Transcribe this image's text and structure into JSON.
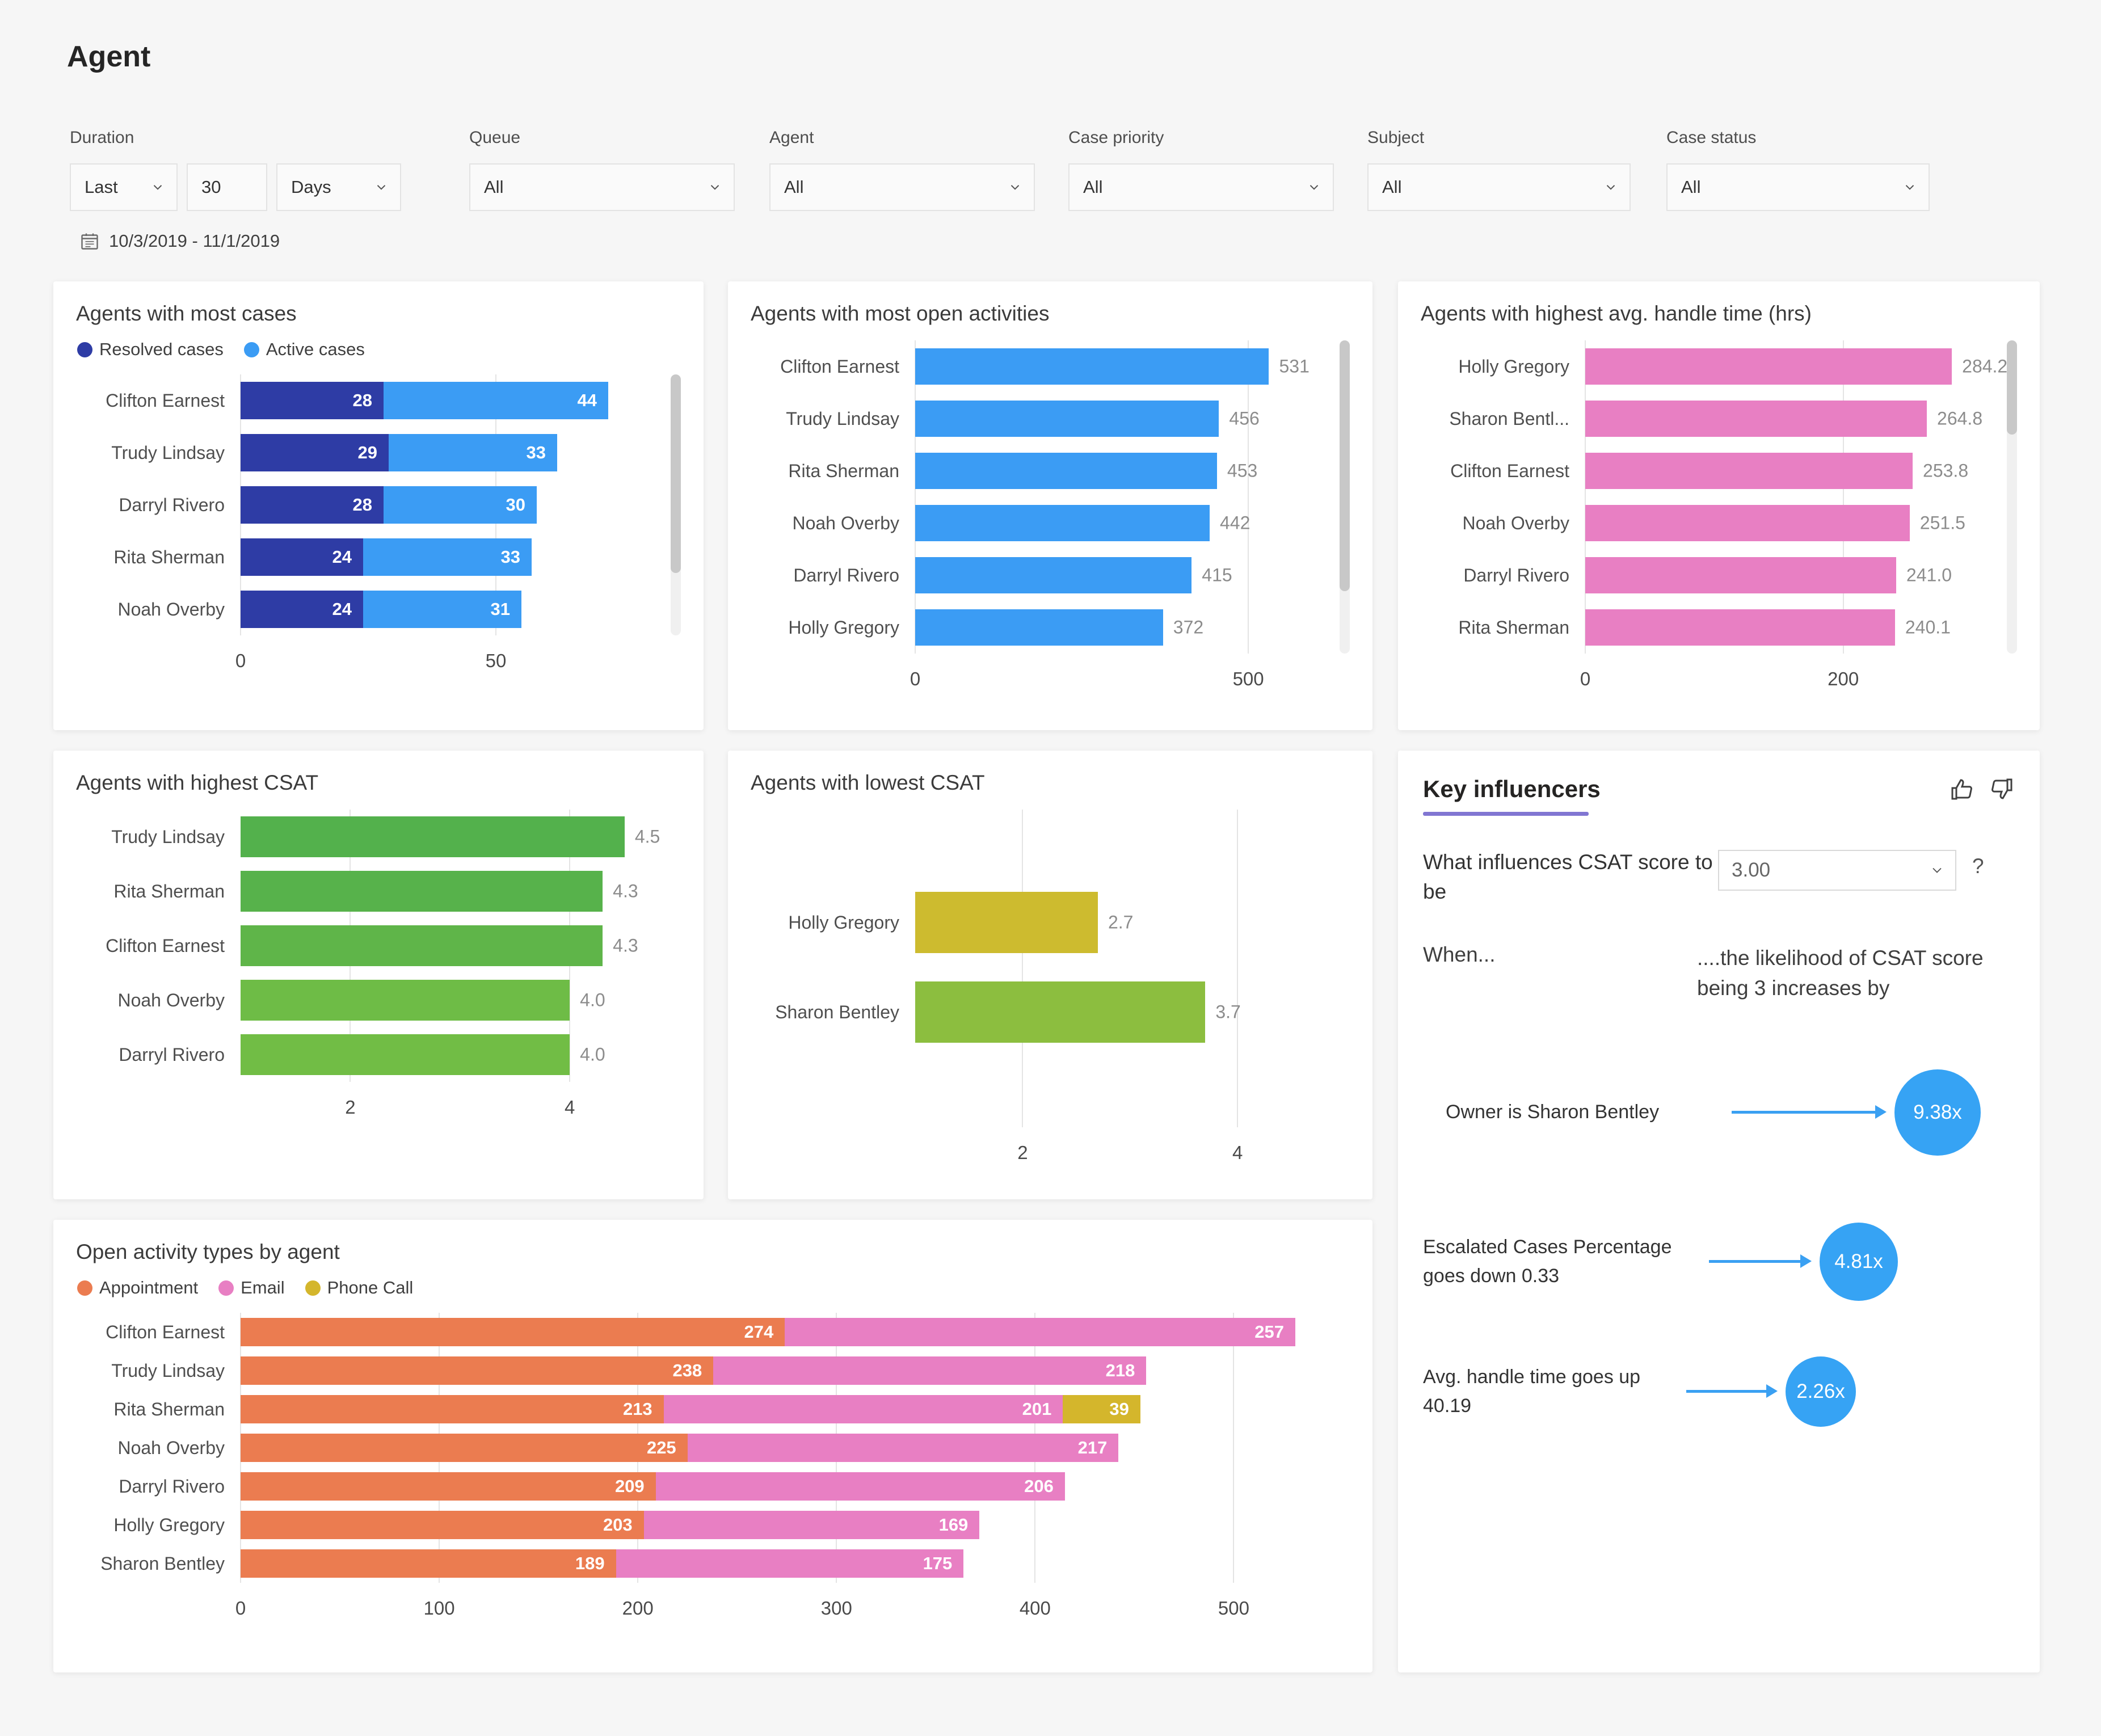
{
  "page": {
    "title": "Agent"
  },
  "filters": {
    "duration": {
      "label": "Duration",
      "mode": "Last",
      "value": "30",
      "unit": "Days"
    },
    "selects": [
      {
        "label": "Queue",
        "value": "All"
      },
      {
        "label": "Agent",
        "value": "All"
      },
      {
        "label": "Case priority",
        "value": "All"
      },
      {
        "label": "Subject",
        "value": "All"
      },
      {
        "label": "Case status",
        "value": "All"
      }
    ],
    "date_range": "10/3/2019 - 11/1/2019"
  },
  "colors": {
    "background": "#F6F6F6",
    "card": "#FFFFFF",
    "resolved_blue": "#2E3CA5",
    "active_blue": "#3B9CF4",
    "handle_pink": "#E87FC3",
    "appointment_orange": "#EB7C50",
    "email_pink": "#E87FC3",
    "phone_yellow": "#D4B62C",
    "low_csat_gold": "#CDBB2F",
    "low_csat_green": "#8CBE3F",
    "influencer_circle_blue": "#36A3F4",
    "ki_underline_purple": "#8176D2"
  },
  "chart_data": [
    {
      "id": "most_cases",
      "type": "bar",
      "stacked": true,
      "title": "Agents with most cases",
      "legend": true,
      "legend_position": "top",
      "grid": true,
      "categories": [
        "Clifton Earnest",
        "Trudy Lindsay",
        "Darryl Rivero",
        "Rita Sherman",
        "Noah Overby"
      ],
      "series": [
        {
          "name": "Resolved cases",
          "color": "#2E3CA5",
          "values": [
            28,
            29,
            28,
            24,
            24
          ]
        },
        {
          "name": "Active cases",
          "color": "#3B9CF4",
          "values": [
            44,
            33,
            30,
            33,
            31
          ]
        }
      ],
      "axis": {
        "min": 0,
        "max": 82,
        "ticks": [
          {
            "v": 0,
            "label": "0"
          },
          {
            "v": 50,
            "label": "50"
          }
        ]
      }
    },
    {
      "id": "open_activities",
      "type": "bar",
      "title": "Agents with most open activities",
      "legend": false,
      "grid": true,
      "color": "#3B9CF4",
      "categories": [
        "Clifton Earnest",
        "Trudy Lindsay",
        "Rita Sherman",
        "Noah Overby",
        "Darryl Rivero",
        "Holly Gregory"
      ],
      "values": [
        531,
        456,
        453,
        442,
        415,
        372
      ],
      "labels": [
        "531",
        "456",
        "453",
        "442",
        "415",
        "372"
      ],
      "axis": {
        "min": 0,
        "max": 620,
        "ticks": [
          {
            "v": 0,
            "label": "0"
          },
          {
            "v": 500,
            "label": "500"
          }
        ]
      }
    },
    {
      "id": "handle_time",
      "type": "bar",
      "title": "Agents with highest avg. handle time (hrs)",
      "legend": false,
      "grid": true,
      "color": "#E87FC3",
      "categories": [
        "Holly Gregory",
        "Sharon Bentl...",
        "Clifton Earnest",
        "Noah Overby",
        "Darryl Rivero",
        "Rita Sherman"
      ],
      "values": [
        284.2,
        264.8,
        253.8,
        251.5,
        241.0,
        240.1
      ],
      "labels": [
        "284.2",
        "264.8",
        "253.8",
        "251.5",
        "241.0",
        "240.1"
      ],
      "axis": {
        "min": 0,
        "max": 318,
        "ticks": [
          {
            "v": 0,
            "label": "0"
          },
          {
            "v": 200,
            "label": "200"
          }
        ]
      }
    },
    {
      "id": "highest_csat",
      "type": "bar",
      "title": "Agents with highest CSAT",
      "legend": false,
      "grid": true,
      "categories": [
        "Trudy Lindsay",
        "Rita Sherman",
        "Clifton Earnest",
        "Noah Overby",
        "Darryl Rivero"
      ],
      "values": [
        4.5,
        4.3,
        4.3,
        4.0,
        4.0
      ],
      "labels": [
        "4.5",
        "4.3",
        "4.3",
        "4.0",
        "4.0"
      ],
      "bar_colors": [
        "#53B14C",
        "#57B24B",
        "#5FB549",
        "#6EBC46",
        "#71BD45"
      ],
      "axis": {
        "min": 1,
        "max": 4.93,
        "ticks": [
          {
            "v": 2,
            "label": "2"
          },
          {
            "v": 4,
            "label": "4"
          }
        ]
      }
    },
    {
      "id": "lowest_csat",
      "type": "bar",
      "title": "Agents with lowest CSAT",
      "legend": false,
      "grid": true,
      "categories": [
        "Holly Gregory",
        "Sharon Bentley"
      ],
      "values": [
        2.7,
        3.7
      ],
      "labels": [
        "2.7",
        "3.7"
      ],
      "bar_colors": [
        "#CDBB2F",
        "#8CBE3F"
      ],
      "axis": {
        "min": 1,
        "max": 4.96,
        "ticks": [
          {
            "v": 2,
            "label": "2"
          },
          {
            "v": 4,
            "label": "4"
          }
        ]
      }
    },
    {
      "id": "activity_types",
      "type": "bar",
      "stacked": true,
      "title": "Open activity types by agent",
      "legend": true,
      "legend_position": "top",
      "grid": true,
      "categories": [
        "Clifton Earnest",
        "Trudy Lindsay",
        "Rita Sherman",
        "Noah Overby",
        "Darryl Rivero",
        "Holly Gregory",
        "Sharon Bentley"
      ],
      "series": [
        {
          "name": "Appointment",
          "color": "#EB7C50",
          "values": [
            274,
            238,
            213,
            225,
            209,
            203,
            189
          ]
        },
        {
          "name": "Email",
          "color": "#E87FC3",
          "values": [
            257,
            218,
            201,
            217,
            206,
            169,
            175
          ]
        },
        {
          "name": "Phone Call",
          "color": "#D4B62C",
          "values": [
            0,
            0,
            39,
            0,
            0,
            0,
            0
          ]
        }
      ],
      "axis": {
        "min": 0,
        "max": 555,
        "ticks": [
          {
            "v": 0,
            "label": "0"
          },
          {
            "v": 100,
            "label": "100"
          },
          {
            "v": 200,
            "label": "200"
          },
          {
            "v": 300,
            "label": "300"
          },
          {
            "v": 400,
            "label": "400"
          },
          {
            "v": 500,
            "label": "500"
          }
        ]
      }
    }
  ],
  "key_influencers": {
    "title": "Key influencers",
    "question": "What influences CSAT score to be",
    "dropdown_value": "3.00",
    "help_label": "?",
    "when_label": "When...",
    "likelihood_label": "....the likelihood of CSAT score being 3 increases by",
    "influencers": [
      {
        "text": "Owner is Sharon Bentley",
        "multiplier": "9.38x"
      },
      {
        "text": "Escalated Cases Percentage goes down 0.33",
        "multiplier": "4.81x"
      },
      {
        "text": "Avg. handle time goes up 40.19",
        "multiplier": "2.26x"
      }
    ]
  }
}
